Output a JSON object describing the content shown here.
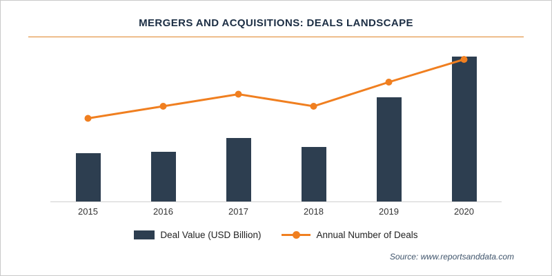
{
  "header": {
    "title": "MERGERS AND ACQUISITIONS: DEALS LANDSCAPE"
  },
  "colors": {
    "bar": "#2d3e50",
    "line": "#f07f20",
    "accent_rule": "#de8326",
    "title": "#1c2e44",
    "axis": "#cfcfcf"
  },
  "chart_data": {
    "type": "bar",
    "title": "MERGERS AND ACQUISITIONS: DEALS LANDSCAPE",
    "categories": [
      "2015",
      "2016",
      "2017",
      "2018",
      "2019",
      "2020"
    ],
    "series": [
      {
        "name": "Deal Value (USD Billion)",
        "type": "bar",
        "values": [
          32,
          33,
          42,
          36,
          69,
          96
        ]
      },
      {
        "name": "Annual Number of Deals",
        "type": "line",
        "values": [
          55,
          63,
          71,
          63,
          79,
          94
        ]
      }
    ],
    "xlabel": "",
    "ylabel": "",
    "ylim": [
      0,
      100
    ],
    "grid": false,
    "legend_position": "bottom"
  },
  "legend": {
    "items": [
      {
        "label": "Deal Value (USD Billion)",
        "swatch": "bar"
      },
      {
        "label": "Annual Number of Deals",
        "swatch": "line"
      }
    ]
  },
  "footer": {
    "source": "Source: www.reportsanddata.com"
  }
}
